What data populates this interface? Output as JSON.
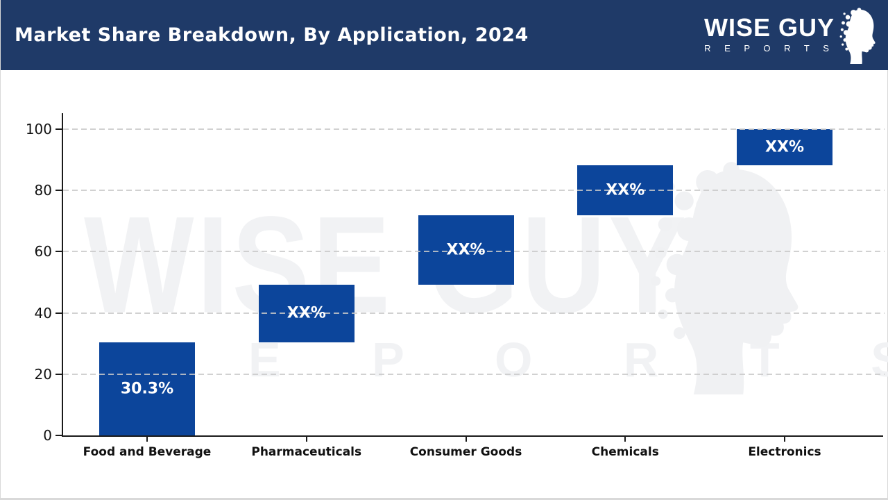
{
  "header": {
    "title": "Market Share Breakdown, By Application, 2024",
    "bg_color": "#1F3A68",
    "logo": {
      "line1": "WISE GUY",
      "line2": "R E P O R T S"
    }
  },
  "watermark": {
    "line1": "WISE GUY",
    "line2": "R E P O R T S"
  },
  "chart_data": {
    "type": "bar",
    "bar_style": "floating-waterfall",
    "title": "Market Share Breakdown, By Application, 2024",
    "categories": [
      "Food and Beverage",
      "Pharmaceuticals",
      "Consumer Goods",
      "Chemicals",
      "Electronics"
    ],
    "segments": [
      {
        "category": "Food and Beverage",
        "from": 0,
        "to": 30.3,
        "label": "30.3%"
      },
      {
        "category": "Pharmaceuticals",
        "from": 30.3,
        "to": 49.3,
        "label": "XX%"
      },
      {
        "category": "Consumer Goods",
        "from": 49.3,
        "to": 71.9,
        "label": "XX%"
      },
      {
        "category": "Chemicals",
        "from": 71.9,
        "to": 88.3,
        "label": "XX%"
      },
      {
        "category": "Electronics",
        "from": 88.3,
        "to": 100,
        "label": "XX%"
      }
    ],
    "xlabel": "",
    "ylabel": "",
    "ylim": [
      0,
      105
    ],
    "yticks": [
      0,
      20,
      40,
      60,
      80,
      100
    ],
    "grid": "horizontal-dashed",
    "legend": "none",
    "bar_color": "#0C459B",
    "bar_label_color": "#FFFFFF",
    "gridline_color": "#C9C9C9",
    "axis_color": "#1A1A1A"
  }
}
